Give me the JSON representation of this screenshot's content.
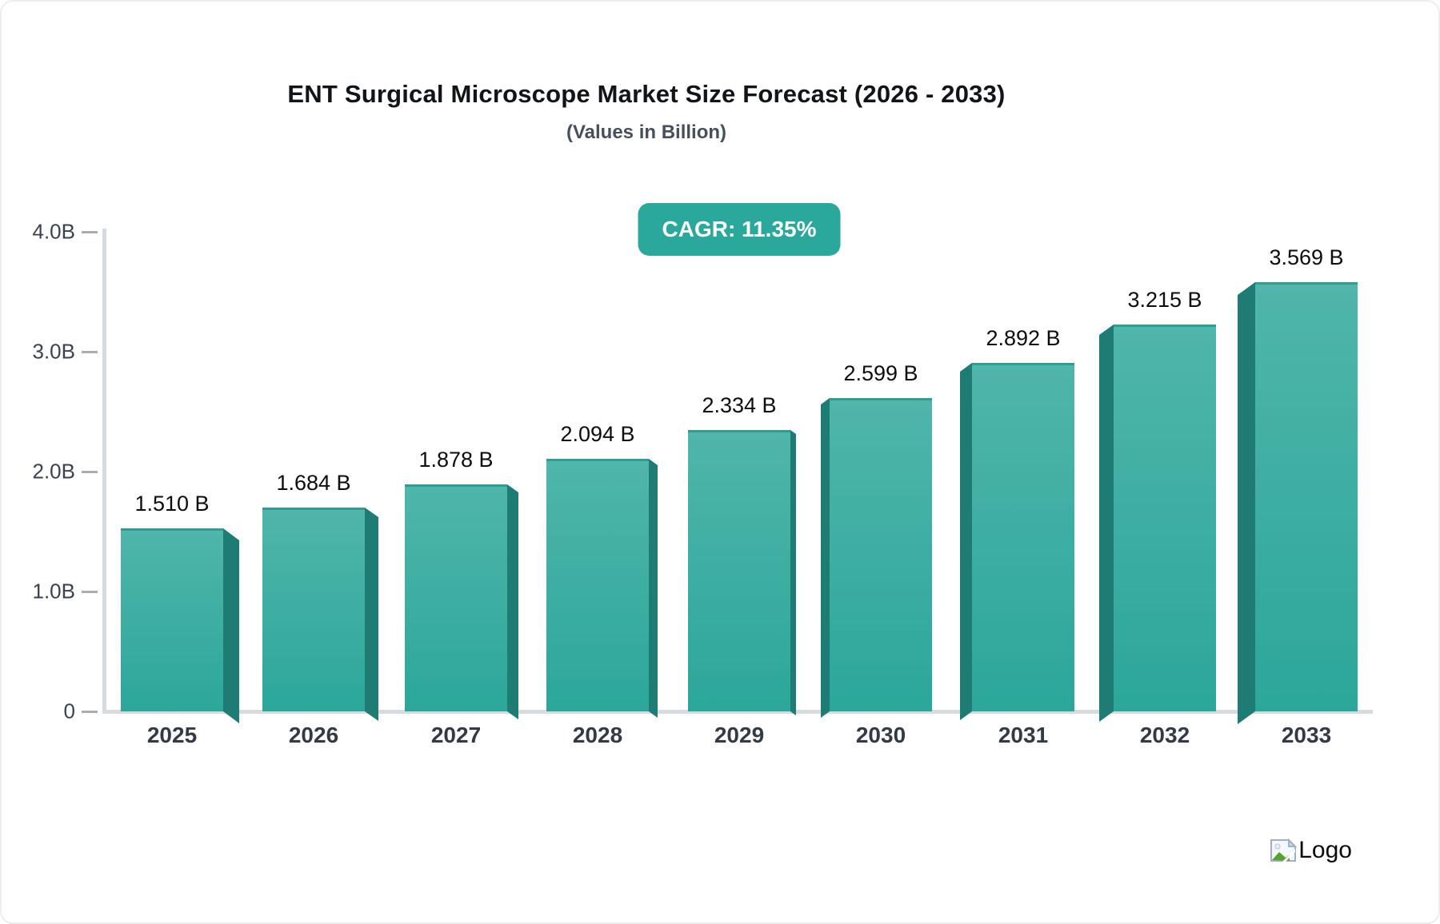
{
  "header": {
    "title": "ENT Surgical Microscope Market Size Forecast (2026 - 2033)",
    "subtitle": "(Values in Billion)"
  },
  "badge": {
    "label": "CAGR: 11.35%"
  },
  "footer": {
    "logo_text": "Logo"
  },
  "colors": {
    "bar_top": "#50b5aa",
    "bar_bottom": "#2ba79a",
    "bar_side": "#1f7c74",
    "bar_edge": "#2f9d93",
    "axis_line": "#d7dade",
    "tick_dash": "#a7adb5",
    "badge_bg": "#2aa89b",
    "badge_text": "#ffffff"
  },
  "chart_data": {
    "type": "bar",
    "title": "ENT Surgical Microscope Market Size Forecast (2026 - 2033)",
    "subtitle": "(Values in Billion)",
    "categories": [
      "2025",
      "2026",
      "2027",
      "2028",
      "2029",
      "2030",
      "2031",
      "2032",
      "2033"
    ],
    "values": [
      1.51,
      1.684,
      1.878,
      2.094,
      2.334,
      2.599,
      2.892,
      3.215,
      3.569
    ],
    "value_labels": [
      "1.510 B",
      "1.684 B",
      "1.878 B",
      "2.094 B",
      "2.334 B",
      "2.599 B",
      "2.892 B",
      "3.215 B",
      "3.569 B"
    ],
    "ytick_labels": [
      "0",
      "1.0B",
      "2.0B",
      "3.0B",
      "4.0B"
    ],
    "ylim": [
      0,
      4.0
    ],
    "unit": "Billion",
    "cagr": "11.35%",
    "grid": "off",
    "legend": "none",
    "bar_style": "3d-teal"
  }
}
